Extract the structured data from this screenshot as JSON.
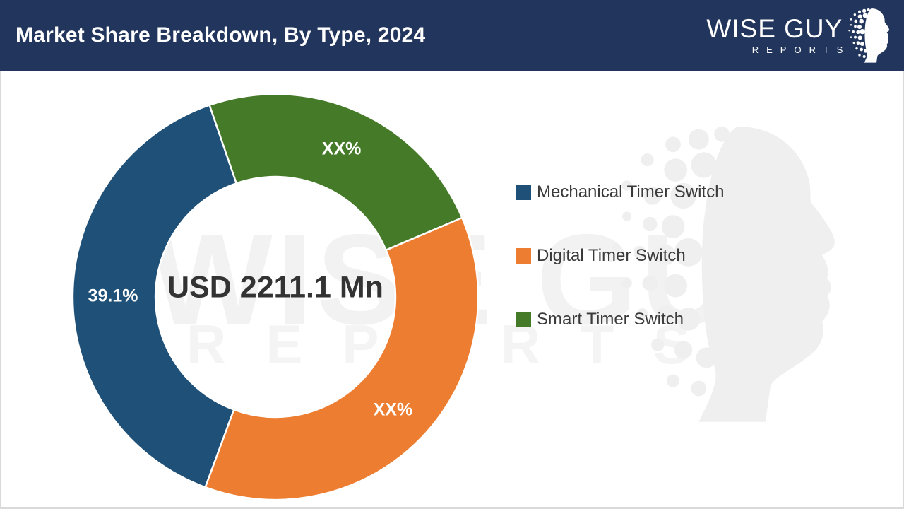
{
  "header": {
    "title": "Market Share Breakdown, By Type, 2024",
    "logo": {
      "wordmark": "WISE GUY",
      "subtext": "REPORTS"
    }
  },
  "watermark": {
    "line1": "WISE GUY",
    "line2": "REPORTS"
  },
  "chart": {
    "center_label": "USD 2211.1 Mn"
  },
  "chart_data": {
    "type": "pie",
    "subtype": "donut",
    "title": "Market Share Breakdown, By Type, 2024",
    "center_label": "USD 2211.1 Mn",
    "start_angle_deg": 109,
    "direction": "counterclockwise",
    "legend_position": "right",
    "segments": [
      {
        "name": "Mechanical Timer Switch",
        "display_label": "39.1%",
        "value": 39.1,
        "estimated": false,
        "color": "#1F5077"
      },
      {
        "name": "Digital Timer Switch",
        "display_label": "XX%",
        "value": 37.0,
        "estimated": true,
        "color": "#ED7D31"
      },
      {
        "name": "Smart Timer Switch",
        "display_label": "XX%",
        "value": 23.9,
        "estimated": true,
        "color": "#457A28"
      }
    ]
  }
}
